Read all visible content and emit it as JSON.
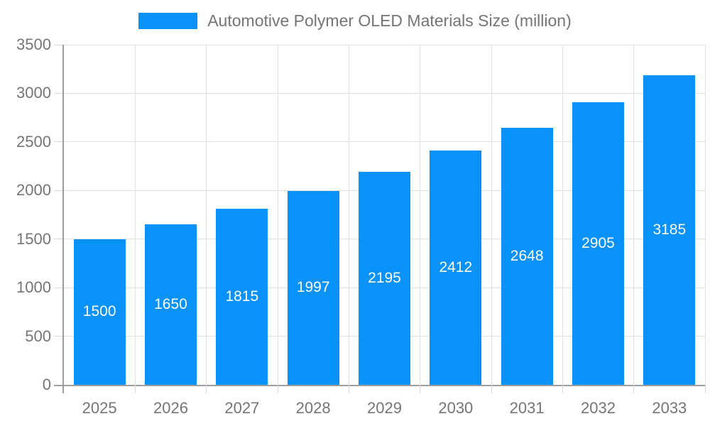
{
  "legend": {
    "swatch_color": "#0892fa"
  },
  "chart_data": {
    "type": "bar",
    "title": "Automotive Polymer OLED Materials Size (million)",
    "categories": [
      "2025",
      "2026",
      "2027",
      "2028",
      "2029",
      "2030",
      "2031",
      "2032",
      "2033"
    ],
    "values": [
      1500,
      1650,
      1815,
      1997,
      2195,
      2412,
      2648,
      2905,
      3185
    ],
    "xlabel": "",
    "ylabel": "",
    "ylim": [
      0,
      3500
    ],
    "yticks": [
      0,
      500,
      1000,
      1500,
      2000,
      2500,
      3000,
      3500
    ],
    "grid": true,
    "legend_position": "top-center",
    "bar_color": "#0892fa",
    "bar_label_color": "#ffffff",
    "axis_color": "#9e9e9e",
    "grid_color": "#e0e0e0",
    "tick_color": "#d9d9d9",
    "text_color": "#757575"
  }
}
